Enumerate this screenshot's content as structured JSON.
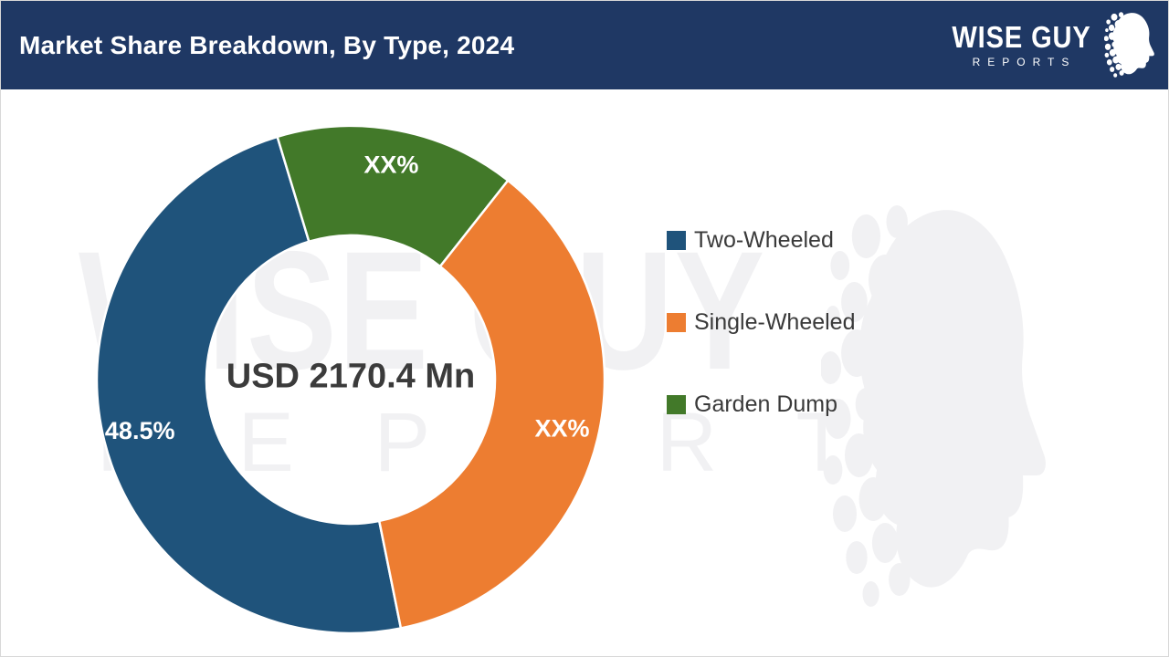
{
  "header": {
    "title": "Market Share Breakdown, By Type, 2024",
    "brand_line1": "WISE GUY",
    "brand_line2": "REPORTS",
    "bg_color": "#1f3864"
  },
  "watermark": {
    "line1": "WISE GUY",
    "line2": "REPORTS"
  },
  "chart_data": {
    "type": "pie",
    "subtype": "donut",
    "title": "Market Share Breakdown, By Type, 2024",
    "center_label": "USD 2170.4 Mn",
    "start_angle_deg": 168.6,
    "direction": "clockwise",
    "outer_radius_px": 280,
    "inner_radius_px": 160,
    "slices": [
      {
        "name": "Two-Wheeled",
        "value_pct": 48.5,
        "label": "48.5%",
        "color": "#1f537b"
      },
      {
        "name": "Garden Dump",
        "value_pct": 15.3,
        "label": "XX%",
        "color": "#427929"
      },
      {
        "name": "Single-Wheeled",
        "value_pct": 36.2,
        "label": "XX%",
        "color": "#ed7d31"
      }
    ],
    "legend": [
      {
        "label": "Two-Wheeled",
        "color": "#1f537b"
      },
      {
        "label": "Single-Wheeled",
        "color": "#ed7d31"
      },
      {
        "label": "Garden Dump",
        "color": "#427929"
      }
    ],
    "legend_position": "right"
  }
}
